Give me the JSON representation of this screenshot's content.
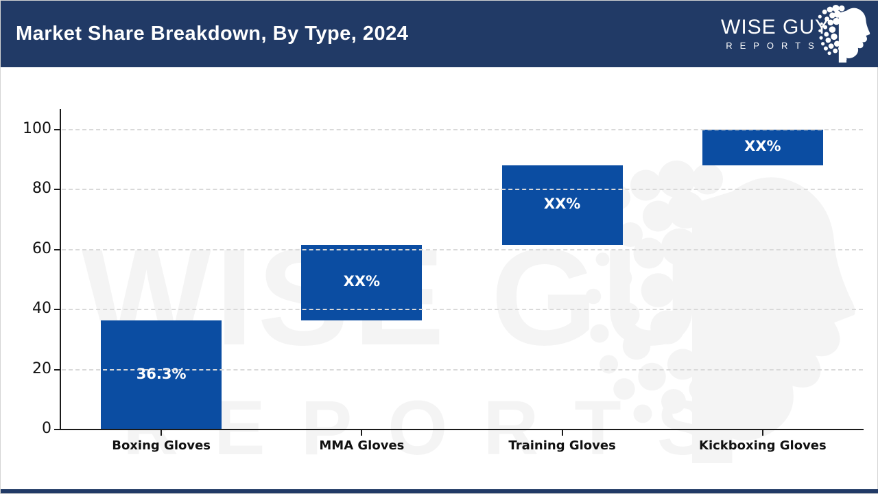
{
  "header": {
    "title": "Market Share Breakdown, By Type, 2024",
    "background_color": "#213a66",
    "logo": {
      "line1": "WISE GUY",
      "line2": "REPORTS"
    }
  },
  "watermark": {
    "line1": "WISE GUY",
    "line2": "REPORTS"
  },
  "chart_data": {
    "type": "bar",
    "subtype": "waterfall",
    "title": "Market Share Breakdown, By Type, 2024",
    "categories": [
      "Boxing Gloves",
      "MMA Gloves",
      "Training Gloves",
      "Kickboxing Gloves"
    ],
    "segments": [
      {
        "category": "Boxing Gloves",
        "start": 0,
        "end": 36.3,
        "label": "36.3%"
      },
      {
        "category": "MMA Gloves",
        "start": 36.3,
        "end": 61.5,
        "label": "XX%"
      },
      {
        "category": "Training Gloves",
        "start": 61.5,
        "end": 88.0,
        "label": "XX%"
      },
      {
        "category": "Kickboxing Gloves",
        "start": 88.0,
        "end": 100.0,
        "label": "XX%"
      }
    ],
    "xlabel": "",
    "ylabel": "",
    "ylim": [
      0,
      100
    ],
    "yticks": [
      0,
      20,
      40,
      60,
      80,
      100
    ],
    "grid": "horizontal-dashed",
    "legend": "none",
    "bar_color": "#0b4da2",
    "bar_label_color": "#ffffff"
  }
}
